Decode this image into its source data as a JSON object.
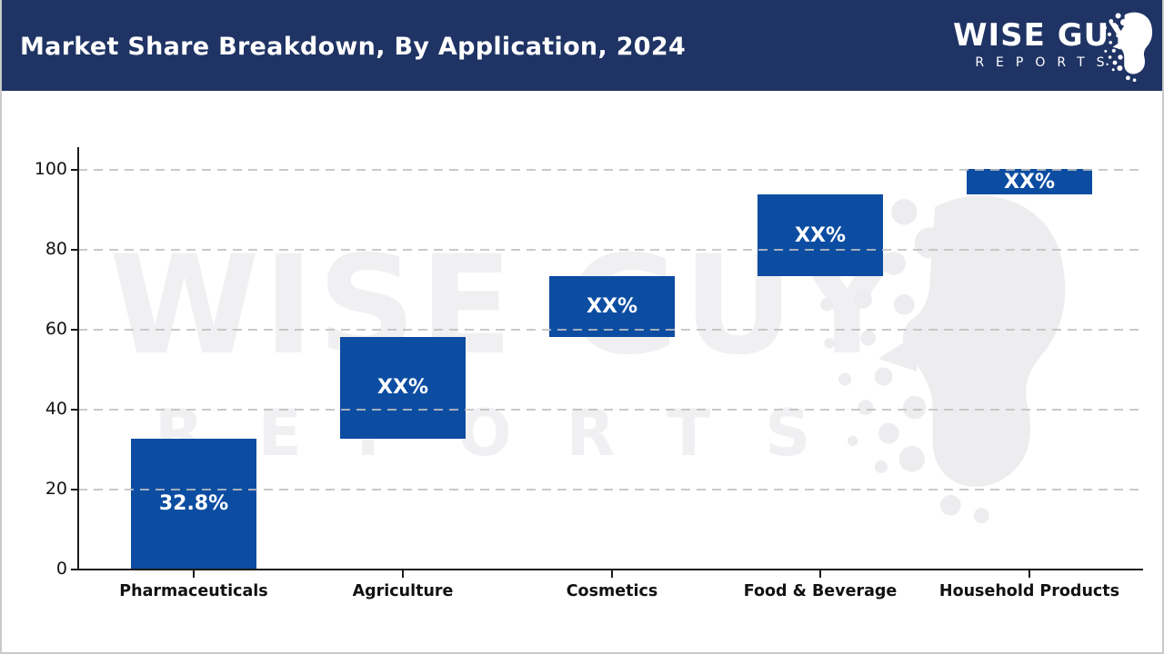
{
  "header": {
    "title": "Market Share Breakdown, By Application, 2024",
    "logo": {
      "line1": "WISE GUY",
      "line2": "REPORTS"
    }
  },
  "watermark": {
    "line1": "WISE GUY",
    "line2": "REPORTS"
  },
  "chart_data": {
    "type": "bar",
    "subtype": "waterfall",
    "title": "Market Share Breakdown, By Application, 2024",
    "categories": [
      "Pharmaceuticals",
      "Agriculture",
      "Cosmetics",
      "Food & Beverage",
      "Household Products"
    ],
    "segments": [
      {
        "category": "Pharmaceuticals",
        "start": 0,
        "end": 32.8,
        "label": "32.8%"
      },
      {
        "category": "Agriculture",
        "start": 32.8,
        "end": 58.2,
        "label": "XX%"
      },
      {
        "category": "Cosmetics",
        "start": 58.2,
        "end": 73.4,
        "label": "XX%"
      },
      {
        "category": "Food & Beverage",
        "start": 73.4,
        "end": 93.8,
        "label": "XX%"
      },
      {
        "category": "Household Products",
        "start": 93.8,
        "end": 100.2,
        "label": "XX%"
      }
    ],
    "xlabel": "",
    "ylabel": "",
    "yticks": [
      0,
      20,
      40,
      60,
      80,
      100
    ],
    "ylim": [
      0,
      106
    ],
    "grid": "dashed-horizontal",
    "legend": "none",
    "bar_color": "#0c4da2",
    "bar_label_color": "#ffffff",
    "axis_color": "#1a1a1a",
    "header_color": "#1f3464"
  }
}
